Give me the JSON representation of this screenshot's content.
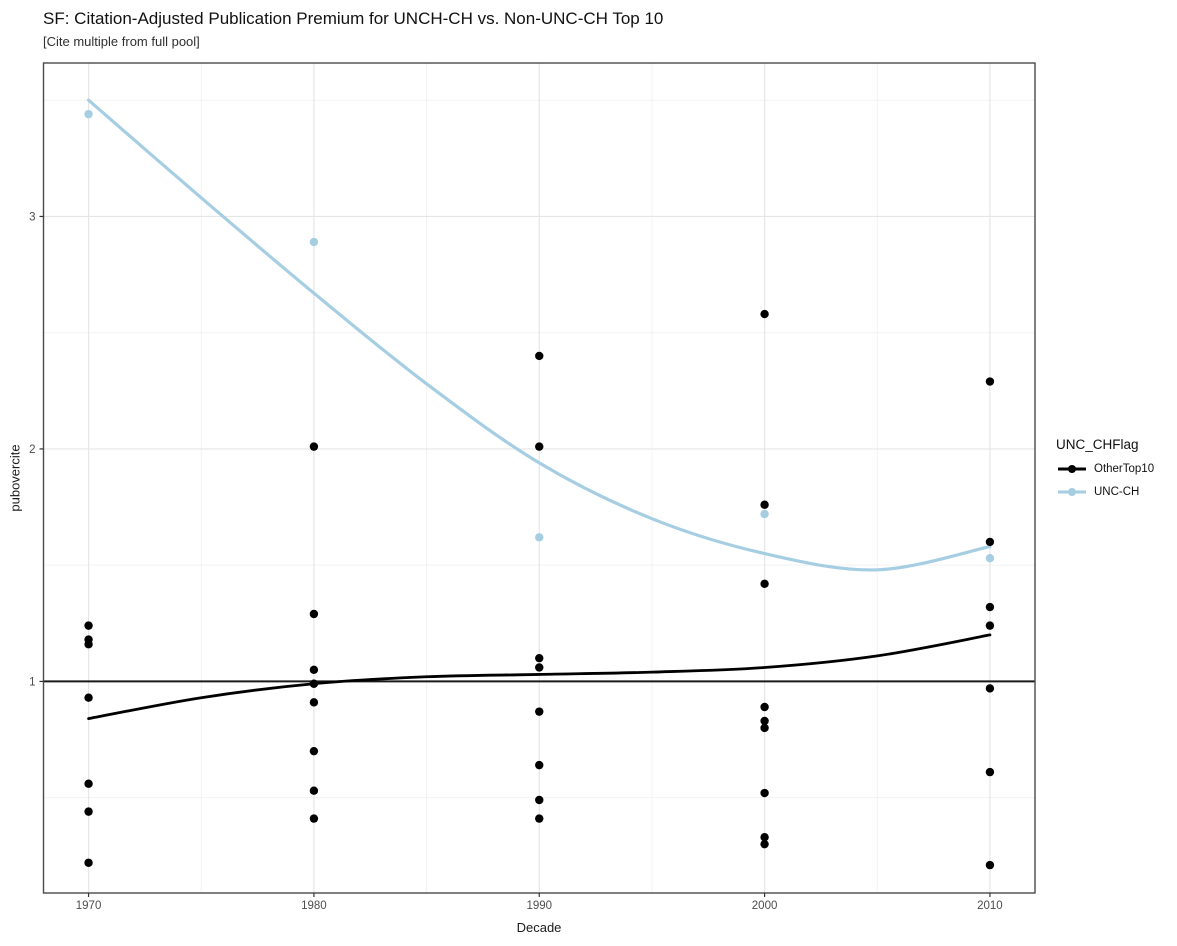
{
  "chart_data": {
    "type": "scatter",
    "title": "SF: Citation-Adjusted Publication Premium for UNCH-CH vs. Non-UNC-CH Top 10",
    "subtitle": "[Cite multiple from full pool]",
    "xlabel": "Decade",
    "ylabel": "pubovercite",
    "x_ticks": [
      1970,
      1980,
      1990,
      2000,
      2010
    ],
    "y_ticks": [
      1,
      2,
      3
    ],
    "x_minor": [
      1975,
      1985,
      1995,
      2005
    ],
    "y_minor": [
      0.5,
      1.5,
      2.5,
      3.5
    ],
    "xlim": [
      1968,
      2012
    ],
    "ylim": [
      0.09,
      3.66
    ],
    "hline": 1.0,
    "grid": "on",
    "legend": {
      "title": "UNC_CHFlag",
      "position": "right",
      "entries": [
        {
          "label": "OtherTop10",
          "color": "#000000"
        },
        {
          "label": "UNC-CH",
          "color": "#a6cee3"
        }
      ]
    },
    "series": [
      {
        "name": "OtherTop10",
        "color": "#000000",
        "points": [
          [
            1970,
            1.24
          ],
          [
            1970,
            1.18
          ],
          [
            1970,
            1.16
          ],
          [
            1970,
            0.93
          ],
          [
            1970,
            0.56
          ],
          [
            1970,
            0.44
          ],
          [
            1970,
            0.22
          ],
          [
            1980,
            2.01
          ],
          [
            1980,
            1.29
          ],
          [
            1980,
            1.05
          ],
          [
            1980,
            0.99
          ],
          [
            1980,
            0.91
          ],
          [
            1980,
            0.7
          ],
          [
            1980,
            0.53
          ],
          [
            1980,
            0.41
          ],
          [
            1990,
            2.4
          ],
          [
            1990,
            2.01
          ],
          [
            1990,
            1.1
          ],
          [
            1990,
            1.06
          ],
          [
            1990,
            0.87
          ],
          [
            1990,
            0.64
          ],
          [
            1990,
            0.49
          ],
          [
            1990,
            0.41
          ],
          [
            2000,
            2.58
          ],
          [
            2000,
            1.76
          ],
          [
            2000,
            1.42
          ],
          [
            2000,
            0.89
          ],
          [
            2000,
            0.83
          ],
          [
            2000,
            0.8
          ],
          [
            2000,
            0.52
          ],
          [
            2000,
            0.33
          ],
          [
            2000,
            0.3
          ],
          [
            2010,
            2.29
          ],
          [
            2010,
            1.6
          ],
          [
            2010,
            1.32
          ],
          [
            2010,
            1.24
          ],
          [
            2010,
            0.97
          ],
          [
            2010,
            0.61
          ],
          [
            2010,
            0.21
          ]
        ],
        "smooth": [
          [
            1970,
            0.84
          ],
          [
            1975,
            0.93
          ],
          [
            1980,
            0.99
          ],
          [
            1985,
            1.02
          ],
          [
            1990,
            1.03
          ],
          [
            1995,
            1.04
          ],
          [
            2000,
            1.06
          ],
          [
            2005,
            1.11
          ],
          [
            2010,
            1.2
          ]
        ]
      },
      {
        "name": "UNC-CH",
        "color": "#a6cee3",
        "points": [
          [
            1970,
            3.44
          ],
          [
            1980,
            2.89
          ],
          [
            1990,
            1.62
          ],
          [
            2000,
            1.72
          ],
          [
            2010,
            1.53
          ]
        ],
        "smooth": [
          [
            1970,
            3.5
          ],
          [
            1975,
            3.08
          ],
          [
            1980,
            2.67
          ],
          [
            1985,
            2.28
          ],
          [
            1990,
            1.94
          ],
          [
            1995,
            1.7
          ],
          [
            2000,
            1.55
          ],
          [
            2005,
            1.48
          ],
          [
            2010,
            1.58
          ]
        ]
      }
    ],
    "colors": {
      "major_grid": "#e6e6e6",
      "minor_grid": "#f2f2f2",
      "panel_border": "#4a4a4a",
      "reference_line": "#1a1a1a",
      "tick_label": "#4d4d4d"
    }
  }
}
